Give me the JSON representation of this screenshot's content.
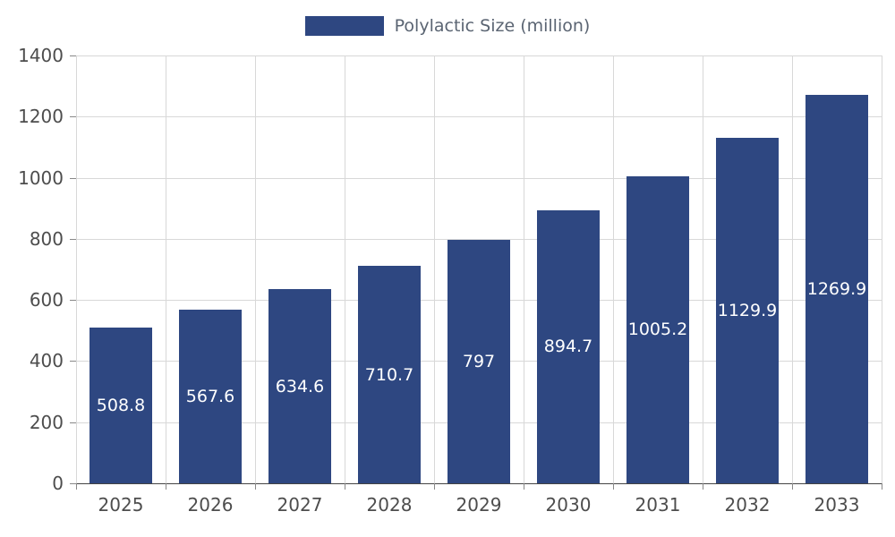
{
  "legend": {
    "label": "Polylactic Size (million)"
  },
  "chart_data": {
    "type": "bar",
    "title": "Polylactic Size (million)",
    "categories": [
      "2025",
      "2026",
      "2027",
      "2028",
      "2029",
      "2030",
      "2031",
      "2032",
      "2033"
    ],
    "values": [
      508.8,
      567.6,
      634.6,
      710.7,
      797,
      894.7,
      1005.2,
      1129.9,
      1269.9
    ],
    "xlabel": "",
    "ylabel": "",
    "ylim": [
      0,
      1400
    ],
    "yticks": [
      0,
      200,
      400,
      600,
      800,
      1000,
      1200,
      1400
    ],
    "grid": true,
    "legend_position": "top",
    "bar_color": "#2e4781",
    "value_label_color": "#ffffff",
    "axis_text_color": "#4d4d4d",
    "gridline_color": "#d8d8d8"
  }
}
